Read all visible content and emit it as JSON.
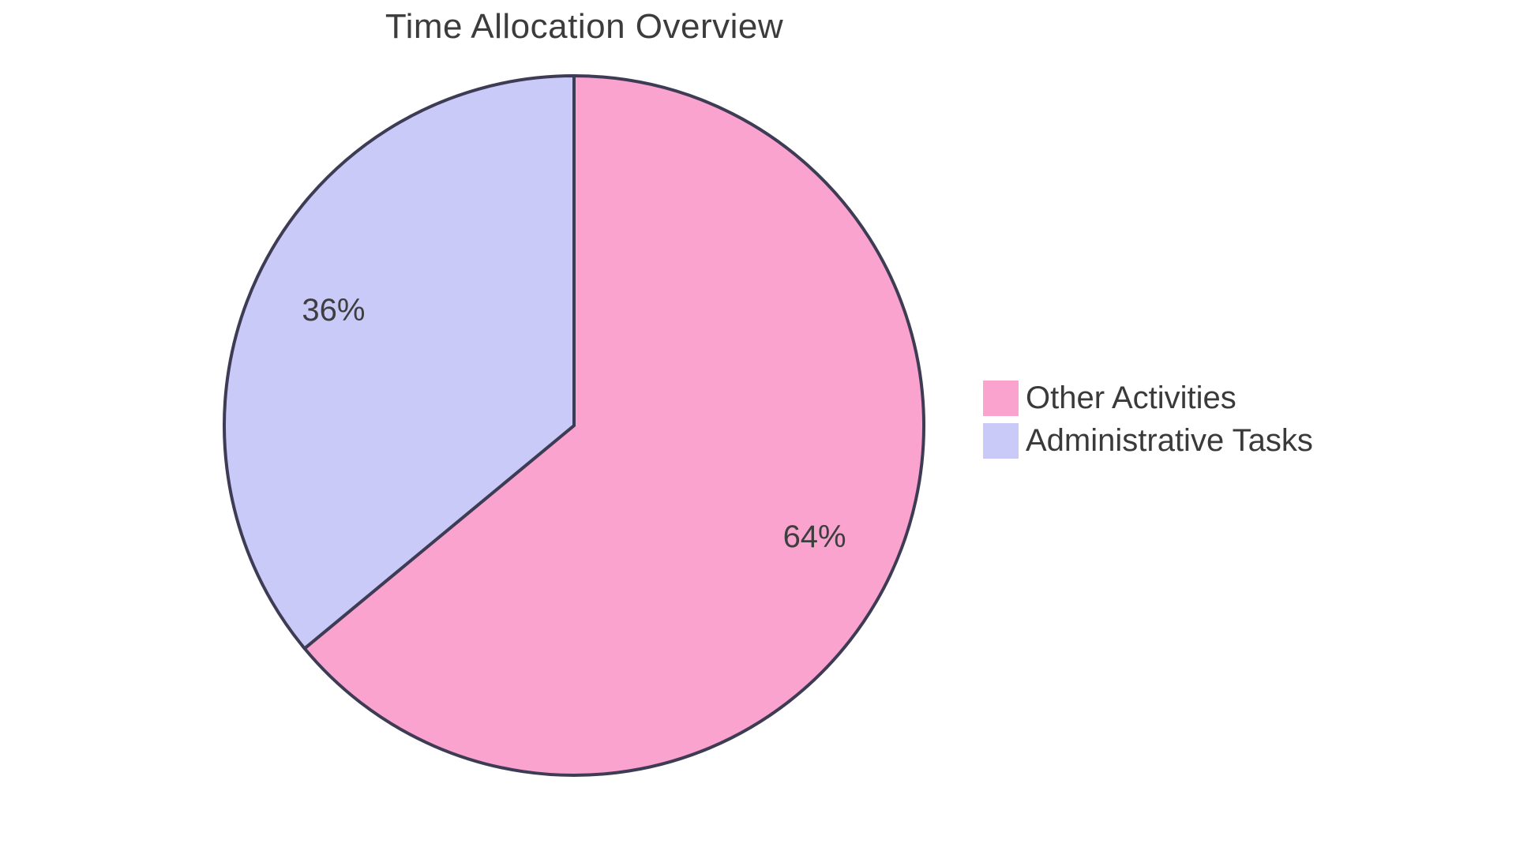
{
  "chart_data": {
    "type": "pie",
    "title": "Time Allocation Overview",
    "slices": [
      {
        "label": "Other Activities",
        "value": 64,
        "pct_label": "64%",
        "color": "#F9A3CE"
      },
      {
        "label": "Administrative Tasks",
        "value": 36,
        "pct_label": "36%",
        "color": "#C9CAF7"
      }
    ],
    "start_angle_deg": 0,
    "direction": "clockwise",
    "stroke_color": "#3E3C55",
    "stroke_width": 4,
    "slice_label_color": "#3E3E3E",
    "title_color": "#3C3C3C",
    "legend_text_color": "#3A3A3A",
    "legend_position": "right",
    "background_color": "#FFFFFF"
  }
}
